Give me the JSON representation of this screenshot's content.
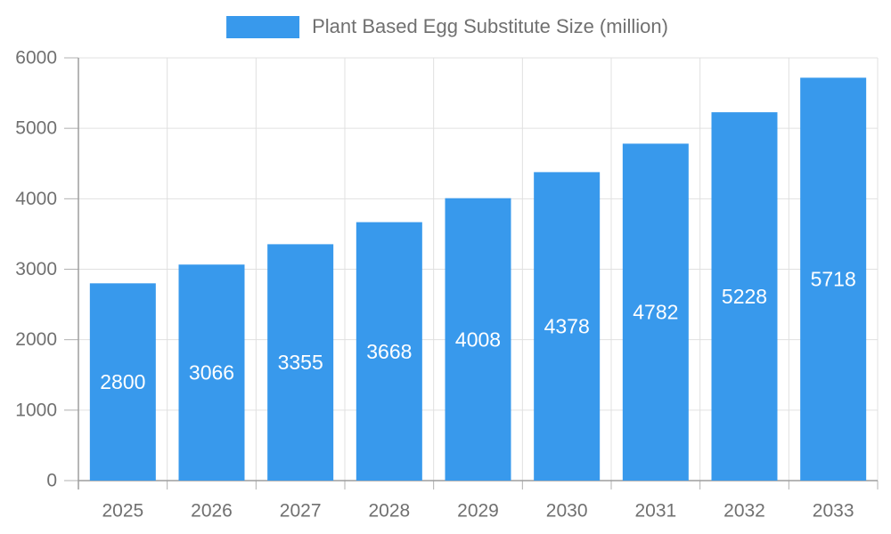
{
  "chart_data": {
    "type": "bar",
    "title": "Plant Based Egg Substitute Size (million)",
    "categories": [
      "2025",
      "2026",
      "2027",
      "2028",
      "2029",
      "2030",
      "2031",
      "2032",
      "2033"
    ],
    "values": [
      2800,
      3066,
      3355,
      3668,
      4008,
      4378,
      4782,
      5228,
      5718
    ],
    "xlabel": "",
    "ylabel": "",
    "ylim": [
      0,
      6000
    ],
    "ytick_step": 1000,
    "ytick_labels": [
      "0",
      "1000",
      "2000",
      "3000",
      "4000",
      "5000",
      "6000"
    ],
    "grid": true,
    "legend_position": "top-center",
    "bar_value_labels": "inside-center-white"
  },
  "colors": {
    "bar": "#3899EC",
    "axis_text": "#707070",
    "grid_line": "#E0E0E0",
    "axis_line": "#9E9E9E",
    "tick_mark": "#B0B0B0",
    "value_label": "#FFFFFF",
    "background": "#FFFFFF"
  }
}
